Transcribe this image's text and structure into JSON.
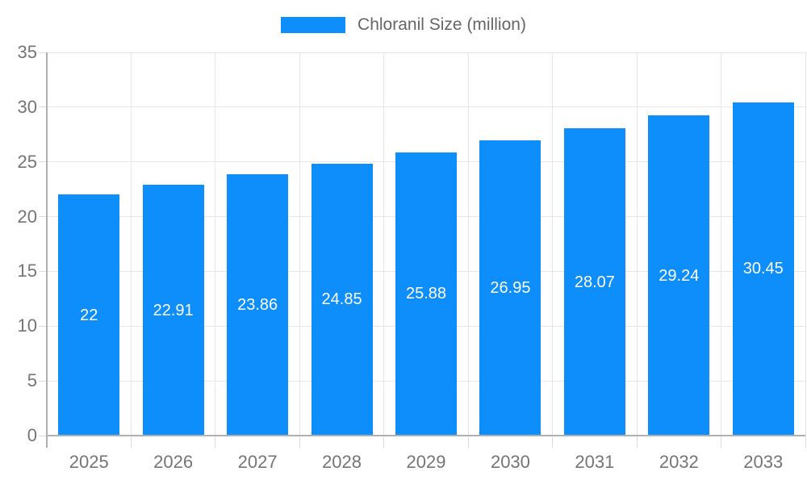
{
  "legend": {
    "items": [
      {
        "label": "Chloranil Size (million)",
        "color": "#0D8EFA"
      }
    ]
  },
  "chart_data": {
    "type": "bar",
    "title": "Chloranil Size (million)",
    "categories": [
      "2025",
      "2026",
      "2027",
      "2028",
      "2029",
      "2030",
      "2031",
      "2032",
      "2033"
    ],
    "series": [
      {
        "name": "Chloranil Size (million)",
        "values": [
          22,
          22.91,
          23.86,
          24.85,
          25.88,
          26.95,
          28.07,
          29.24,
          30.45
        ],
        "value_labels": [
          "22",
          "22.91",
          "23.86",
          "24.85",
          "25.88",
          "26.95",
          "28.07",
          "29.24",
          "30.45"
        ],
        "color": "#0D8EFA"
      }
    ],
    "xlabel": "",
    "ylabel": "",
    "ylim": [
      0,
      35
    ],
    "y_ticks": [
      0,
      5,
      10,
      15,
      20,
      25,
      30,
      35
    ],
    "grid": true,
    "legend_position": "top",
    "value_label_color": "#ffffff"
  },
  "colors": {
    "bar": "#0D8EFA",
    "grid": "#e6e6e6",
    "axis": "#b0b0b0",
    "tick": "#dcdcdc",
    "axis_text": "#757575",
    "legend_text": "#666666",
    "value_text": "#ffffff"
  }
}
